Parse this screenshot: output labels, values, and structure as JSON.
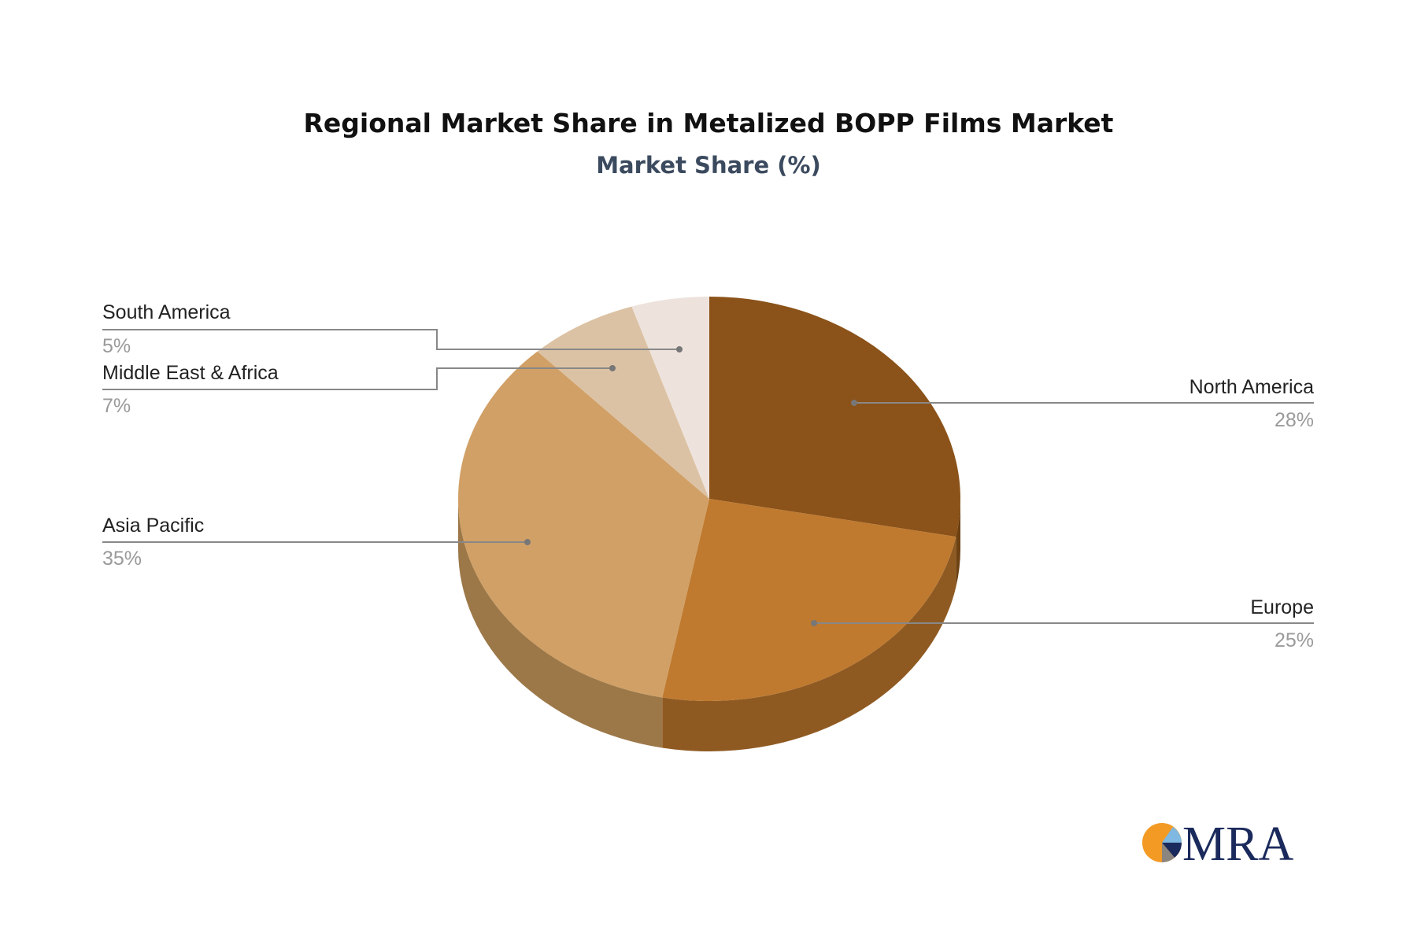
{
  "chart_data": {
    "type": "pie",
    "style": "3d",
    "title": "Regional Market Share in Metalized BOPP Films Market",
    "subtitle": "Market Share (%)",
    "legend": "none",
    "slices": [
      {
        "label": "North America",
        "value": 28,
        "display": "28%",
        "color": "#8B5219",
        "side": "#6E4112"
      },
      {
        "label": "Europe",
        "value": 25,
        "display": "25%",
        "color": "#BF7A2F",
        "side": "#8F5A22"
      },
      {
        "label": "Asia Pacific",
        "value": 35,
        "display": "35%",
        "color": "#D1A066",
        "side": "#9C7849"
      },
      {
        "label": "Middle East & Africa",
        "value": 7,
        "display": "7%",
        "color": "#DCC2A4",
        "side": "#A89277"
      },
      {
        "label": "South America",
        "value": 5,
        "display": "5%",
        "color": "#EDE3DC",
        "side": "#BBB1AA"
      }
    ]
  },
  "logo": {
    "text": "MRA",
    "colors": [
      "#F39A24",
      "#1B2A5C",
      "#7FB8E0",
      "#8A857E"
    ]
  }
}
